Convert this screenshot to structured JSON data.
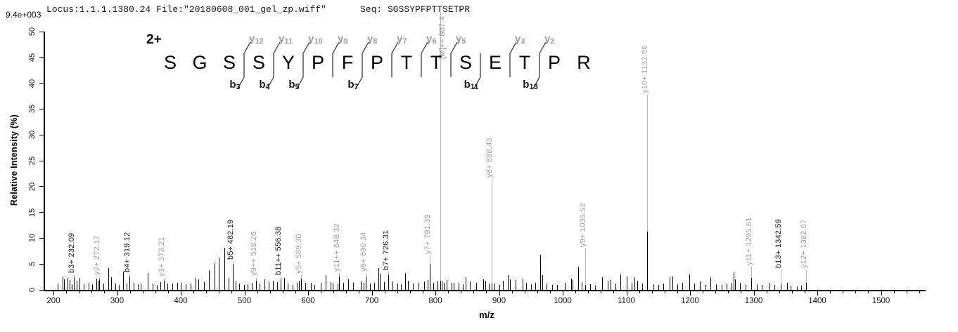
{
  "header": {
    "locus_file": "Locus:1.1.1.1380.24 File:\"20180608_001_gel_zp.wiff\"",
    "seq_label": "Seq: SGSSYPFPTTSETPR",
    "intensity_scale": "9.4e+003"
  },
  "sequence_panel": {
    "charge": "2+",
    "sequence": "SGSSYPFPTTSETPR",
    "markers": [
      {
        "after": 3,
        "y": "y12",
        "b": "b3"
      },
      {
        "after": 4,
        "y": "y11",
        "b": "b4"
      },
      {
        "after": 5,
        "y": "y10",
        "b": "b5"
      },
      {
        "after": 6,
        "y": "y9"
      },
      {
        "after": 7,
        "y": "y8",
        "b": "b7"
      },
      {
        "after": 8,
        "y": "y7"
      },
      {
        "after": 9,
        "y": "y6"
      },
      {
        "after": 10,
        "y": "y5"
      },
      {
        "after": 11,
        "b": "b11"
      },
      {
        "after": 12,
        "y": "y3"
      },
      {
        "after": 13,
        "y": "y2",
        "b": "b13"
      }
    ]
  },
  "chart_data": {
    "type": "bar",
    "title": "MS/MS fragment spectrum",
    "xlabel": "m/z",
    "ylabel": "Relative Intensity (%)",
    "x_range": [
      185,
      1570
    ],
    "x_ticks": [
      200,
      300,
      400,
      500,
      600,
      700,
      800,
      900,
      1000,
      1100,
      1200,
      1300,
      1400,
      1500
    ],
    "x_minor_step": 20,
    "x_minor_end": 1560,
    "y_range": [
      0,
      50
    ],
    "y_ticks": [
      0,
      5,
      10,
      15,
      20,
      25,
      30,
      35,
      40,
      45,
      50
    ],
    "grid": false,
    "colors": {
      "peak": "#000000",
      "b_ion_label": "#1a1a1a",
      "y_ion_label": "#a0a0a0",
      "precursor_label": "#8c8c8c",
      "leader_line": "#b4b4b4"
    },
    "annotated_peaks": [
      {
        "mz": 232.09,
        "label": "b3+ 232.09",
        "series": "b",
        "intensity_pct": 2.4,
        "label_base_pct": 3.0
      },
      {
        "mz": 272.17,
        "label": "y2+ 272.17",
        "series": "y",
        "intensity_pct": 2.1,
        "label_base_pct": 2.6
      },
      {
        "mz": 319.12,
        "label": "b4+ 319.12",
        "series": "b",
        "intensity_pct": 2.6,
        "label_base_pct": 3.1
      },
      {
        "mz": 373.21,
        "label": "y3+ 373.21",
        "series": "y",
        "intensity_pct": 1.8,
        "label_base_pct": 2.3
      },
      {
        "mz": 482.19,
        "label": "b5+ 482.19",
        "series": "b",
        "intensity_pct": 5.0,
        "label_base_pct": 5.6
      },
      {
        "mz": 518.26,
        "label": "y9++ 518.26",
        "series": "y",
        "intensity_pct": 1.8,
        "label_base_pct": 2.4
      },
      {
        "mz": 556.38,
        "label": "b11++ 556.38",
        "series": "b",
        "intensity_pct": 2.0,
        "label_base_pct": 2.6
      },
      {
        "mz": 589.3,
        "label": "y5+ 589.30",
        "series": "y",
        "intensity_pct": 2.2,
        "label_base_pct": 2.8
      },
      {
        "mz": 648.32,
        "label": "y11++ 648.32",
        "series": "y",
        "intensity_pct": 2.6,
        "label_base_pct": 3.2
      },
      {
        "mz": 690.34,
        "label": "y6+ 690.34",
        "series": "y",
        "intensity_pct": 2.6,
        "label_base_pct": 3.2
      },
      {
        "mz": 726.31,
        "label": "b7+ 726.31",
        "series": "b",
        "intensity_pct": 2.9,
        "label_base_pct": 3.5
      },
      {
        "mz": 791.39,
        "label": "y7+ 791.39",
        "series": "y",
        "intensity_pct": 5.0,
        "label_base_pct": 6.6
      },
      {
        "mz": 807.4,
        "label": "[M]++ 807.4",
        "series": "precursor",
        "intensity_pct": 1.8,
        "label_base_pct": 44.4,
        "full_line": true,
        "line_top_pct": 53.7
      },
      {
        "mz": 888.43,
        "label": "y8+ 888.43",
        "series": "y",
        "intensity_pct": 1.2,
        "label_base_pct": 21.4
      },
      {
        "mz": 1035.52,
        "label": "y9+ 1035.52",
        "series": "y",
        "intensity_pct": 1.0,
        "label_base_pct": 8.0
      },
      {
        "mz": 1132.56,
        "label": "y10+ 1132.56",
        "series": "y",
        "intensity_pct": 11.3,
        "label_base_pct": 37.8
      },
      {
        "mz": 1295.61,
        "label": "y11+ 1295.61",
        "series": "y",
        "intensity_pct": 2.3,
        "label_base_pct": 4.5
      },
      {
        "mz": 1342.59,
        "label": "b13+ 1342.59",
        "series": "b",
        "intensity_pct": 1.1,
        "label_base_pct": 3.9
      },
      {
        "mz": 1382.67,
        "label": "y12+ 1382.67",
        "series": "y",
        "intensity_pct": 1.4,
        "label_base_pct": 3.9
      }
    ],
    "noise_peaks": [
      [
        207,
        1.2
      ],
      [
        214,
        2.6
      ],
      [
        217,
        2.1
      ],
      [
        222,
        2.3
      ],
      [
        225,
        1.9
      ],
      [
        229,
        1.1
      ],
      [
        236,
        1.8
      ],
      [
        241,
        2.3
      ],
      [
        248,
        1.1
      ],
      [
        255,
        1.4
      ],
      [
        261,
        1.1
      ],
      [
        267,
        2.2
      ],
      [
        270,
        1.8
      ],
      [
        278,
        1.2
      ],
      [
        286,
        4.2
      ],
      [
        291,
        2.5
      ],
      [
        297,
        1.2
      ],
      [
        303,
        1.0
      ],
      [
        309,
        3.6
      ],
      [
        315,
        1.2
      ],
      [
        326,
        1.3
      ],
      [
        333,
        1.1
      ],
      [
        337,
        1.2
      ],
      [
        348,
        3.2
      ],
      [
        356,
        1.2
      ],
      [
        362,
        1.0
      ],
      [
        368,
        1.5
      ],
      [
        379,
        1.2
      ],
      [
        387,
        1.2
      ],
      [
        395,
        1.3
      ],
      [
        400,
        1.3
      ],
      [
        408,
        1.1
      ],
      [
        415,
        1.2
      ],
      [
        423,
        2.3
      ],
      [
        428,
        2.0
      ],
      [
        436,
        1.5
      ],
      [
        444,
        3.8
      ],
      [
        453,
        5.2
      ],
      [
        460,
        6.3
      ],
      [
        469,
        8.2
      ],
      [
        475,
        2.3
      ],
      [
        486,
        1.8
      ],
      [
        492,
        1.2
      ],
      [
        499,
        1.0
      ],
      [
        505,
        1.1
      ],
      [
        512,
        1.4
      ],
      [
        524,
        1.2
      ],
      [
        531,
        2.0
      ],
      [
        538,
        1.6
      ],
      [
        545,
        1.8
      ],
      [
        551,
        1.5
      ],
      [
        562,
        2.3
      ],
      [
        568,
        1.2
      ],
      [
        576,
        1.0
      ],
      [
        583,
        1.4
      ],
      [
        586,
        1.8
      ],
      [
        596,
        1.3
      ],
      [
        604,
        1.3
      ],
      [
        610,
        1.0
      ],
      [
        620,
        1.3
      ],
      [
        628,
        2.9
      ],
      [
        635,
        1.5
      ],
      [
        639,
        1.4
      ],
      [
        646,
        1.2
      ],
      [
        655,
        1.3
      ],
      [
        663,
        2.0
      ],
      [
        671,
        1.3
      ],
      [
        683,
        1.6
      ],
      [
        687,
        1.3
      ],
      [
        697,
        1.2
      ],
      [
        704,
        1.4
      ],
      [
        710,
        4.2
      ],
      [
        713,
        3.1
      ],
      [
        719,
        1.5
      ],
      [
        733,
        1.6
      ],
      [
        740,
        1.2
      ],
      [
        746,
        1.1
      ],
      [
        752,
        3.2
      ],
      [
        757,
        1.8
      ],
      [
        765,
        1.2
      ],
      [
        774,
        1.4
      ],
      [
        782,
        1.6
      ],
      [
        788,
        1.9
      ],
      [
        797,
        1.3
      ],
      [
        803,
        1.8
      ],
      [
        810,
        1.8
      ],
      [
        813,
        1.4
      ],
      [
        818,
        1.9
      ],
      [
        825,
        1.3
      ],
      [
        829,
        1.4
      ],
      [
        836,
        1.3
      ],
      [
        843,
        1.1
      ],
      [
        848,
        2.4
      ],
      [
        854,
        1.6
      ],
      [
        864,
        1.3
      ],
      [
        875,
        2.1
      ],
      [
        878,
        1.8
      ],
      [
        884,
        1.2
      ],
      [
        893,
        1.2
      ],
      [
        900,
        1.0
      ],
      [
        906,
        1.8
      ],
      [
        914,
        2.8
      ],
      [
        917,
        2.0
      ],
      [
        926,
        1.9
      ],
      [
        937,
        2.2
      ],
      [
        943,
        1.4
      ],
      [
        950,
        1.1
      ],
      [
        957,
        1.3
      ],
      [
        965,
        6.8
      ],
      [
        968,
        2.8
      ],
      [
        975,
        1.2
      ],
      [
        983,
        1.0
      ],
      [
        991,
        0.9
      ],
      [
        1003,
        1.4
      ],
      [
        1013,
        2.2
      ],
      [
        1016,
        1.9
      ],
      [
        1024,
        4.5
      ],
      [
        1030,
        1.5
      ],
      [
        1043,
        1.1
      ],
      [
        1051,
        0.8
      ],
      [
        1062,
        2.4
      ],
      [
        1071,
        1.7
      ],
      [
        1075,
        1.9
      ],
      [
        1083,
        1.2
      ],
      [
        1091,
        3.0
      ],
      [
        1100,
        2.6
      ],
      [
        1108,
        1.3
      ],
      [
        1113,
        2.4
      ],
      [
        1117,
        1.7
      ],
      [
        1125,
        1.2
      ],
      [
        1142,
        1.1
      ],
      [
        1150,
        0.9
      ],
      [
        1158,
        1.2
      ],
      [
        1168,
        2.4
      ],
      [
        1172,
        2.6
      ],
      [
        1180,
        1.1
      ],
      [
        1188,
        1.3
      ],
      [
        1199,
        3.0
      ],
      [
        1207,
        1.2
      ],
      [
        1215,
        1.6
      ],
      [
        1224,
        1.0
      ],
      [
        1232,
        2.4
      ],
      [
        1241,
        1.1
      ],
      [
        1250,
        0.9
      ],
      [
        1258,
        1.2
      ],
      [
        1265,
        1.3
      ],
      [
        1268,
        3.4
      ],
      [
        1271,
        2.1
      ],
      [
        1278,
        1.3
      ],
      [
        1287,
        1.0
      ],
      [
        1305,
        1.1
      ],
      [
        1313,
        0.9
      ],
      [
        1325,
        1.3
      ],
      [
        1333,
        0.9
      ],
      [
        1352,
        1.3
      ],
      [
        1358,
        0.8
      ],
      [
        1368,
        0.7
      ],
      [
        1375,
        0.8
      ]
    ]
  }
}
